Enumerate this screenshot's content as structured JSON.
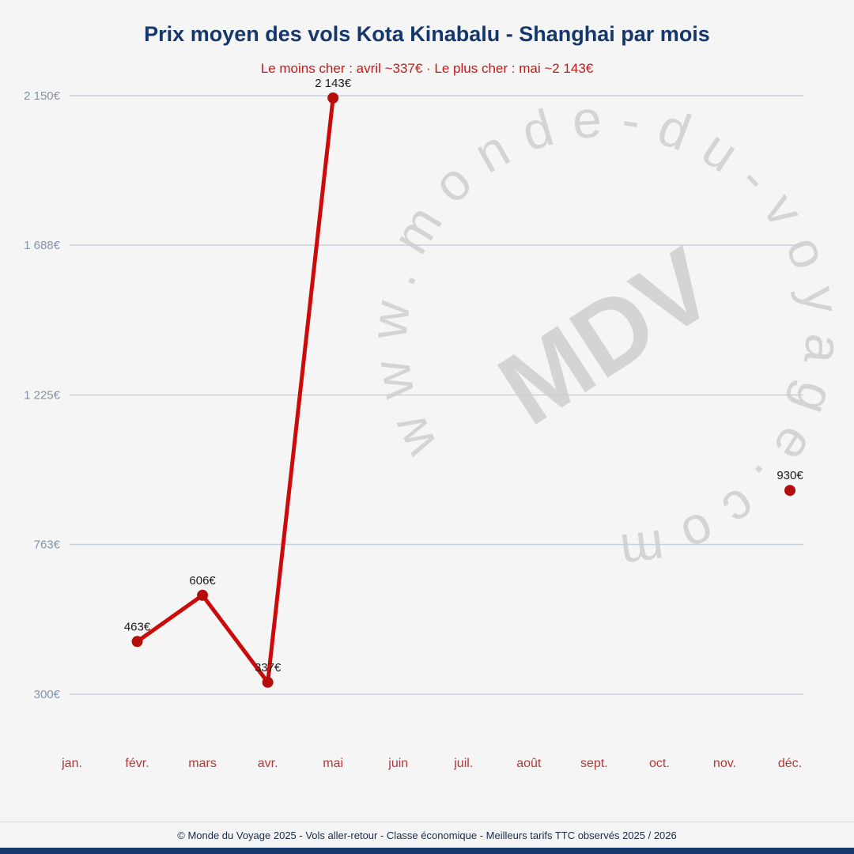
{
  "header": {
    "title": "Prix moyen des vols Kota Kinabalu - Shanghai par mois",
    "subtitle": "Le moins cher : avril ~337€ · Le plus cher : mai ~2 143€"
  },
  "watermark": {
    "circle_text": "www.monde-du-voyage.com",
    "center_text": "MDV"
  },
  "footer": {
    "text": "© Monde du Voyage 2025 - Vols aller-retour - Classe économique - Meilleurs tarifs TTC observés 2025 / 2026"
  },
  "colors": {
    "background": "#f5f5f5",
    "title": "#15376b",
    "subtitle": "#c41919",
    "line": "#cc0a0a",
    "point": "#b50d0d",
    "point_label": "#1a1a1a",
    "grid": "#c9cfd8",
    "ytick": "#8593a8",
    "month": "#b03a3a",
    "footer_text": "#1b2b45",
    "bottom_bar": "#15376b"
  },
  "chart_data": {
    "type": "line",
    "title": "Prix moyen des vols Kota Kinabalu - Shanghai par mois",
    "subtitle": "Le moins cher : avril ~337€ · Le plus cher : mai ~2 143€",
    "categories": [
      "jan.",
      "févr.",
      "mars",
      "avr.",
      "mai",
      "juin",
      "juil.",
      "août",
      "sept.",
      "oct.",
      "nov.",
      "déc."
    ],
    "values": [
      null,
      463,
      606,
      337,
      2143,
      null,
      null,
      null,
      null,
      null,
      null,
      930
    ],
    "point_labels": [
      "",
      "463€",
      "606€",
      "337€",
      "2 143€",
      "",
      "",
      "",
      "",
      "",
      "",
      "930€"
    ],
    "ylim": [
      300,
      2150
    ],
    "yticks": [
      300,
      763,
      1225,
      1688,
      2150
    ],
    "ytick_labels": [
      "300€",
      "763€",
      "1 225€",
      "1 688€",
      "2 150€"
    ],
    "grid": true,
    "legend": false,
    "cheapest": {
      "month": "avril",
      "value": 337
    },
    "most_expensive": {
      "month": "mai",
      "value": 2143
    }
  }
}
